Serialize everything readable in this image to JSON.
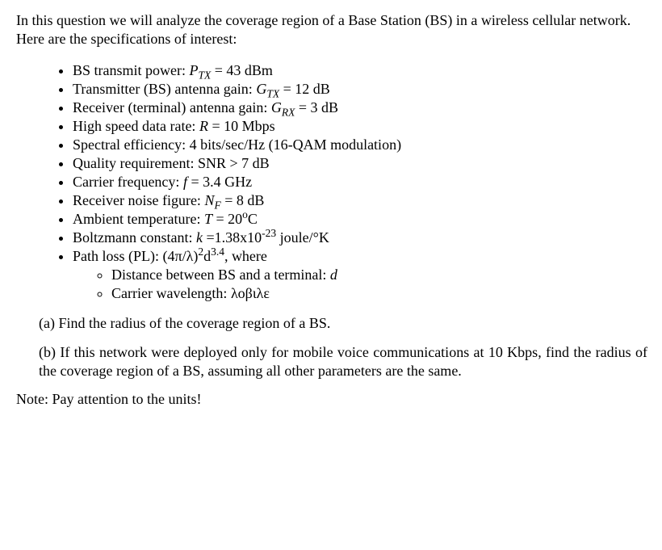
{
  "intro": "In this question we will analyze the coverage region of a Base Station (BS) in a wireless cellular network. Here are the specifications of interest:",
  "specs": {
    "i0": {
      "pre": "BS transmit power: ",
      "sym_pre": "P",
      "sub": "TX",
      "post": " = 43 dBm"
    },
    "i1": {
      "pre": "Transmitter (BS) antenna gain: ",
      "sym_pre": "G",
      "sub": "TX",
      "post": " = 12 dB"
    },
    "i2": {
      "pre": "Receiver (terminal) antenna gain: ",
      "sym_pre": "G",
      "sub": "RX",
      "post": " = 3 dB"
    },
    "i3": {
      "pre": "High speed data rate: ",
      "sym_pre": "R",
      "post": " = 10 Mbps"
    },
    "i4": {
      "text": "Spectral efficiency: 4 bits/sec/Hz (16-QAM modulation)"
    },
    "i5": {
      "text": "Quality requirement: SNR > 7 dB"
    },
    "i6": {
      "pre": "Carrier frequency: ",
      "sym_pre": "f",
      "post": " = 3.4 GHz"
    },
    "i7": {
      "pre": "Receiver noise figure: ",
      "sym_pre": "N",
      "sub": "F",
      "post": " = 8 dB"
    },
    "i8": {
      "pre": "Ambient temperature: ",
      "sym_pre": "T",
      "post_pre": " = 20",
      "sup": "o",
      "post_post": "C"
    },
    "i9": {
      "pre": "Boltzmann constant: ",
      "sym_pre": "k",
      "post_pre": " =1.38x10",
      "sup": "-23",
      "post_post": " joule/°K"
    },
    "i10": {
      "pre": "Path loss (PL): (4π/λ)",
      "sup1": "2",
      "mid": "d",
      "sup2": "3.4",
      "post": ", where"
    },
    "sub0": {
      "pre": "Distance between BS and a terminal: ",
      "sym": "d"
    },
    "sub1": {
      "text": "Carrier wavelength: λοβιλε"
    }
  },
  "qa": "(a) Find the radius of the coverage region of a BS.",
  "qb": "(b) If this network were deployed only for mobile voice communications at 10 Kbps, find the radius of the coverage region of a BS, assuming all other parameters are the same.",
  "note": "Note: Pay attention to the units!"
}
